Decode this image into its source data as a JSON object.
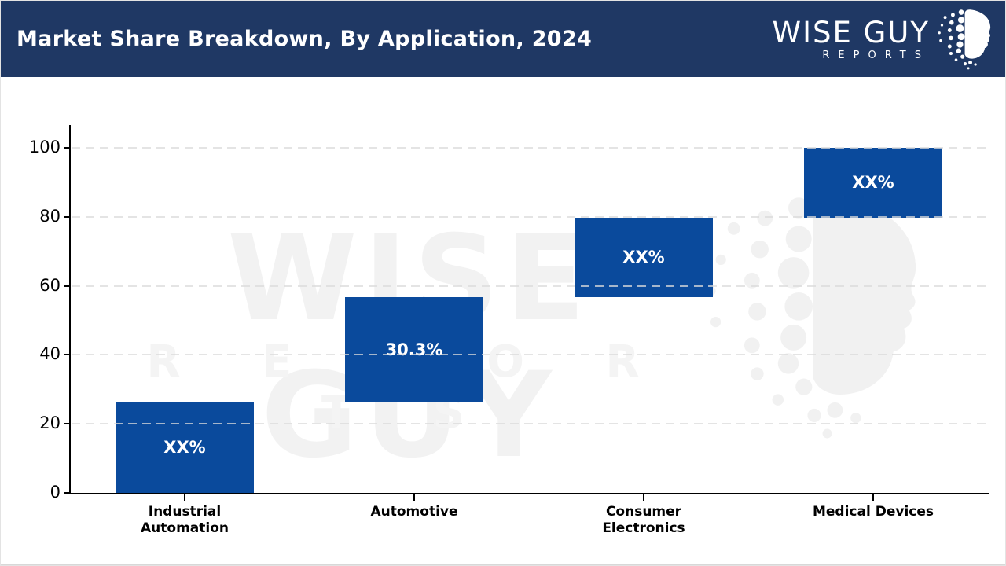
{
  "header": {
    "title": "Market Share Breakdown, By Application, 2024",
    "logo": {
      "line1": "WISE GUY",
      "line2": "REPORTS"
    }
  },
  "watermark": {
    "line1": "WISE GUY",
    "line2": "R E P O R T S"
  },
  "colors": {
    "header_bg": "#1f3864",
    "bar": "#0a4a9c",
    "grid": "#dbdbdb",
    "axis": "#000000",
    "bar_label_text": "#ffffff",
    "watermark": "#f2f2f2"
  },
  "chart_data": {
    "type": "bar",
    "subtype": "waterfall-floating-bars",
    "title": "Market Share Breakdown, By Application, 2024",
    "categories": [
      "Industrial\nAutomation",
      "Automotive",
      "Consumer\nElectronics",
      "Medical Devices"
    ],
    "segments": [
      {
        "category": "Industrial Automation",
        "start": 0,
        "end": 26.4,
        "label": "XX%"
      },
      {
        "category": "Automotive",
        "start": 26.4,
        "end": 56.7,
        "label": "30.3%",
        "value": 30.3
      },
      {
        "category": "Consumer Electronics",
        "start": 56.8,
        "end": 79.7,
        "label": "XX%"
      },
      {
        "category": "Medical Devices",
        "start": 79.8,
        "end": 100,
        "label": "XX%"
      }
    ],
    "xlabel": "",
    "ylabel": "",
    "ylim": [
      0,
      100
    ],
    "yticks": [
      0,
      20,
      40,
      60,
      80,
      100
    ],
    "grid": "dashed-horizontal",
    "legend": "none"
  }
}
